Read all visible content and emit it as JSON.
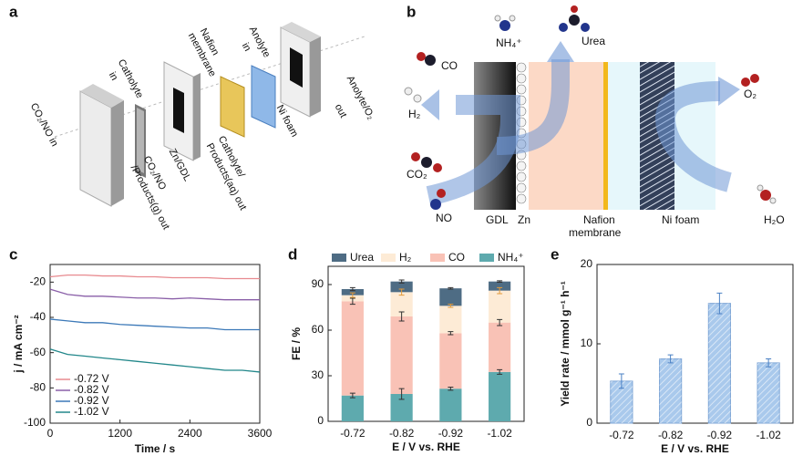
{
  "panel_labels": [
    "a",
    "b",
    "c",
    "d",
    "e"
  ],
  "diagram_a": {
    "labels": [
      "CO₂/NO in",
      "Catholyte",
      "in",
      "Nafion",
      "membrane",
      "Anolyte",
      "in",
      "Anolyte/O₂",
      "out",
      "CO₂/NO",
      "/Products(g) out",
      "Zn/GDL",
      "Catholyte/",
      "Products(aq) out",
      "Ni foam"
    ]
  },
  "diagram_b": {
    "labels": [
      "CO",
      "H₂",
      "CO₂",
      "NO",
      "NH₄⁺",
      "Urea",
      "O₂",
      "H₂O",
      "GDL",
      "Zn",
      "Nafion",
      "membrane",
      "Ni foam"
    ]
  },
  "chart_data": [
    {
      "type": "line",
      "x": [
        0,
        300,
        600,
        900,
        1200,
        1500,
        1800,
        2100,
        2400,
        2700,
        3000,
        3300,
        3600
      ],
      "xlim": [
        0,
        3600
      ],
      "xticks": [
        0,
        1200,
        2400,
        3600
      ],
      "ylim": [
        -100,
        -10
      ],
      "yticks": [
        -20,
        -40,
        -60,
        -80,
        -100
      ],
      "xlabel": "Time / s",
      "ylabel": "j / mA cm⁻²",
      "legend": "lower left",
      "series": [
        {
          "name": "-0.72 V",
          "color": "#e88a8f",
          "values": [
            -17,
            -16,
            -16,
            -16.5,
            -16.5,
            -17,
            -17,
            -17.5,
            -17.5,
            -17.5,
            -18,
            -18,
            -18
          ]
        },
        {
          "name": "-0.82 V",
          "color": "#8a5fa8",
          "values": [
            -24,
            -27,
            -28,
            -28,
            -28.5,
            -29,
            -29,
            -29.5,
            -29,
            -29.5,
            -30,
            -30,
            -30
          ]
        },
        {
          "name": "-0.92 V",
          "color": "#3c79b8",
          "values": [
            -41,
            -42,
            -43,
            -43,
            -44,
            -44.5,
            -45,
            -45.5,
            -46,
            -46,
            -47,
            -47,
            -47
          ]
        },
        {
          "name": "-1.02 V",
          "color": "#22878a",
          "values": [
            -58,
            -61,
            -62,
            -63,
            -64,
            -65,
            -66,
            -67,
            -68,
            -69,
            -70,
            -70,
            -71
          ]
        }
      ]
    },
    {
      "type": "bar",
      "stacked": true,
      "categories": [
        "-0.72",
        "-0.82",
        "-0.92",
        "-1.02"
      ],
      "ylim": [
        0,
        102
      ],
      "yticks": [
        0,
        30,
        60,
        90
      ],
      "xlabel": "E / V vs. RHE",
      "ylabel": "FE / %",
      "legend": "top",
      "series": [
        {
          "name": "NH₄⁺",
          "color": "#5eaaae",
          "values": [
            17,
            18,
            21.5,
            32.5
          ],
          "errors": [
            1.5,
            3.5,
            1,
            1.5
          ]
        },
        {
          "name": "CO",
          "color": "#f9c2b6",
          "values": [
            62,
            51,
            36.5,
            32.5
          ],
          "errors": [
            2,
            3,
            1,
            2
          ]
        },
        {
          "name": "H₂",
          "color": "#fdebd6",
          "values": [
            4,
            16,
            18,
            21
          ],
          "errors": [
            1.5,
            2,
            1,
            2
          ]
        },
        {
          "name": "Urea",
          "color": "#4e6c84",
          "values": [
            4,
            7,
            11.5,
            6
          ],
          "errors": [
            1,
            1,
            0.5,
            0.5
          ]
        }
      ]
    },
    {
      "type": "bar",
      "categories": [
        "-0.72",
        "-0.82",
        "-0.92",
        "-1.02"
      ],
      "ylim": [
        0,
        20
      ],
      "yticks": [
        0,
        10,
        20
      ],
      "xlabel": "E / V vs. RHE",
      "ylabel": "Yield rate / mmol g⁻¹ h⁻¹",
      "color": "#a9c9ec",
      "hatch": true,
      "values": [
        5.3,
        8.1,
        15.1,
        7.6
      ],
      "errors": [
        0.9,
        0.5,
        1.3,
        0.5
      ]
    }
  ]
}
